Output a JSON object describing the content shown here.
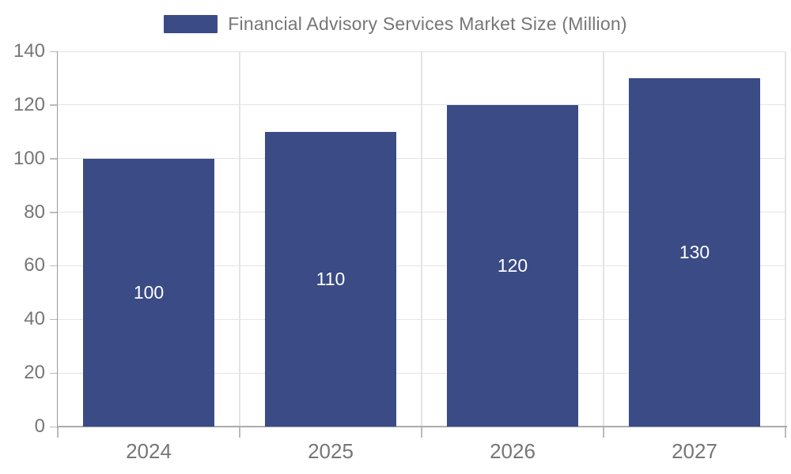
{
  "chart_data": {
    "type": "bar",
    "title": "Financial Advisory Services Market Size (Million)",
    "categories": [
      "2024",
      "2025",
      "2026",
      "2027"
    ],
    "values": [
      100,
      110,
      120,
      130
    ],
    "bar_labels": [
      "100",
      "110",
      "120",
      "130"
    ],
    "xlabel": "",
    "ylabel": "",
    "ylim": [
      0,
      140
    ],
    "yticks": [
      0,
      20,
      40,
      60,
      80,
      100,
      120,
      140
    ],
    "grid": true,
    "legend_position": "top"
  },
  "colors": {
    "bar": "#3A4B85",
    "legend_text": "#767676",
    "tick_text": "#767676",
    "value_label_text": "#FFFFFF",
    "grid_line": "#E4E4E4",
    "y_axis_line": "#9A9A9A",
    "x_axis_line": "#ACACAC",
    "tick_mark": "#BBBBBB"
  }
}
